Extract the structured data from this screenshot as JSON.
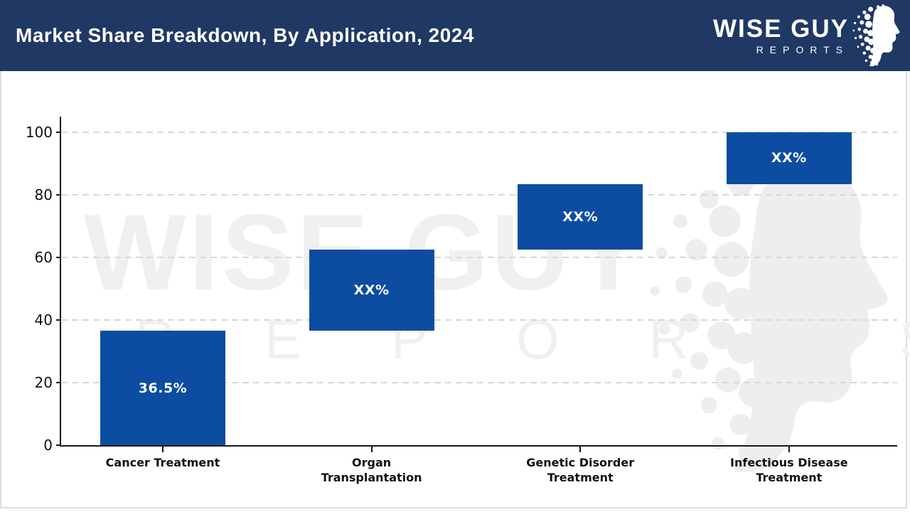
{
  "header": {
    "title": "Market Share Breakdown, By Application, 2024",
    "background_color": "#1f3864",
    "logo": {
      "wordmark": "WISE GUY",
      "subtext": "REPORTS"
    }
  },
  "watermark": {
    "wordmark": "WISE GUY",
    "subtext": "R E P O R T S"
  },
  "chart_data": {
    "type": "bar",
    "subtype": "floating_stacked_percentage",
    "title": "Market Share Breakdown, By Application, 2024",
    "categories": [
      "Cancer Treatment",
      "Organ Transplantation",
      "Genetic Disorder Treatment",
      "Infectious Disease Treatment"
    ],
    "category_label_lines": [
      [
        "Cancer Treatment"
      ],
      [
        "Organ",
        "Transplantation"
      ],
      [
        "Genetic Disorder",
        "Treatment"
      ],
      [
        "Infectious Disease",
        "Treatment"
      ]
    ],
    "segments": [
      {
        "category": "Cancer Treatment",
        "start": 0,
        "end": 36.5,
        "value_label": "36.5%"
      },
      {
        "category": "Organ Transplantation",
        "start": 36.5,
        "end": 62.5,
        "value_label": "XX%"
      },
      {
        "category": "Genetic Disorder Treatment",
        "start": 62.5,
        "end": 83.5,
        "value_label": "XX%"
      },
      {
        "category": "Infectious Disease Treatment",
        "start": 83.5,
        "end": 100,
        "value_label": "XX%"
      }
    ],
    "xlabel": "",
    "ylabel": "",
    "ylim": [
      0,
      100
    ],
    "yticks": [
      0,
      20,
      40,
      60,
      80,
      100
    ],
    "grid": {
      "axis": "y",
      "style": "dashed",
      "color": "#d8d8d8"
    },
    "legend": false,
    "bar_color": "#0c4da2",
    "bar_label_color": "#ffffff",
    "axis_color": "#1a1a1a"
  }
}
